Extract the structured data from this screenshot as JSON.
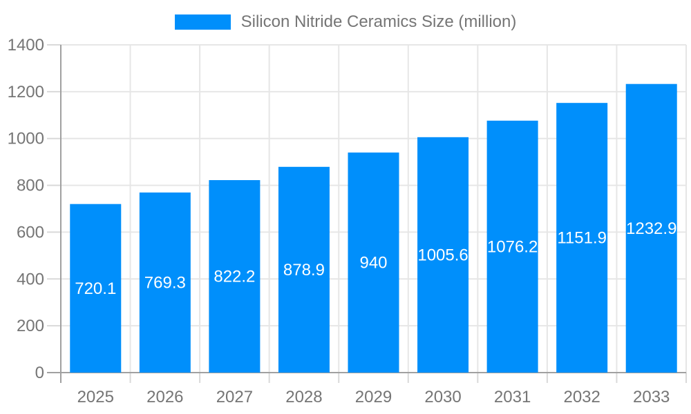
{
  "legend": {
    "label": "Silicon Nitride Ceramics Size (million)",
    "swatch_color": "#008FFB"
  },
  "chart_data": {
    "type": "bar",
    "title": "Silicon Nitride Ceramics Size (million)",
    "categories": [
      "2025",
      "2026",
      "2027",
      "2028",
      "2029",
      "2030",
      "2031",
      "2032",
      "2033"
    ],
    "series": [
      {
        "name": "Silicon Nitride Ceramics Size (million)",
        "values": [
          720.1,
          769.3,
          822.2,
          878.9,
          940,
          1005.6,
          1076.2,
          1151.9,
          1232.9
        ]
      }
    ],
    "value_labels": [
      "720.1",
      "769.3",
      "822.2",
      "878.9",
      "940",
      "1005.6",
      "1076.2",
      "1151.9",
      "1232.9"
    ],
    "xlabel": "",
    "ylabel": "",
    "ylim": [
      0,
      1400
    ],
    "ytick_step": 200,
    "ytick_labels": [
      "0",
      "200",
      "400",
      "600",
      "800",
      "1000",
      "1200",
      "1400"
    ],
    "grid": true,
    "legend_position": "top-center",
    "value_label_position": "center",
    "colors": {
      "bar": "#008FFB",
      "grid": "#e6e6e6",
      "tick": "#d9d9d9",
      "axis": "#a0a0a0",
      "axis_label": "#757575",
      "value_label": "#ffffff",
      "background": "#ffffff"
    }
  }
}
